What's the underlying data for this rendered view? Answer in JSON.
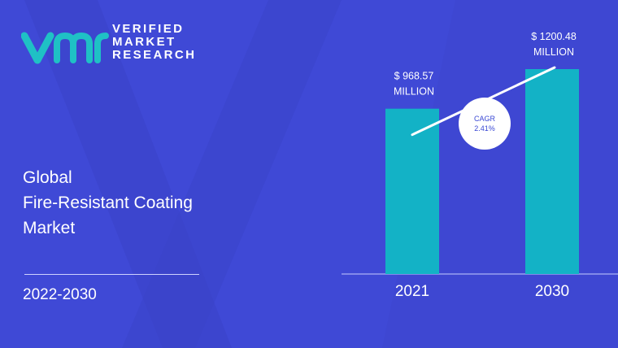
{
  "brand": {
    "line1": "VERIFIED",
    "line2": "MARKET",
    "line3": "RESEARCH"
  },
  "report": {
    "title_line1": "Global",
    "title_line2": "Fire-Resistant Coating",
    "title_line3": "Market",
    "period": "2022-2030"
  },
  "colors": {
    "background": "#3f49d6",
    "background_shape": "#3a42c8",
    "bar": "#13b2c6",
    "logo_teal": "#1fc1c5",
    "text": "#ffffff",
    "cagr_text": "#3a48d4"
  },
  "chart_data": {
    "type": "bar",
    "categories": [
      "2021",
      "2030"
    ],
    "values": [
      968.57,
      1200.48
    ],
    "value_labels": [
      {
        "line1": "$ 968.57",
        "line2": "MILLION"
      },
      {
        "line1": "$ 1200.48",
        "line2": "MILLION"
      }
    ],
    "cagr": {
      "line1": "CAGR",
      "line2": "2.41%"
    },
    "title": "",
    "xlabel": "",
    "ylabel": ""
  }
}
